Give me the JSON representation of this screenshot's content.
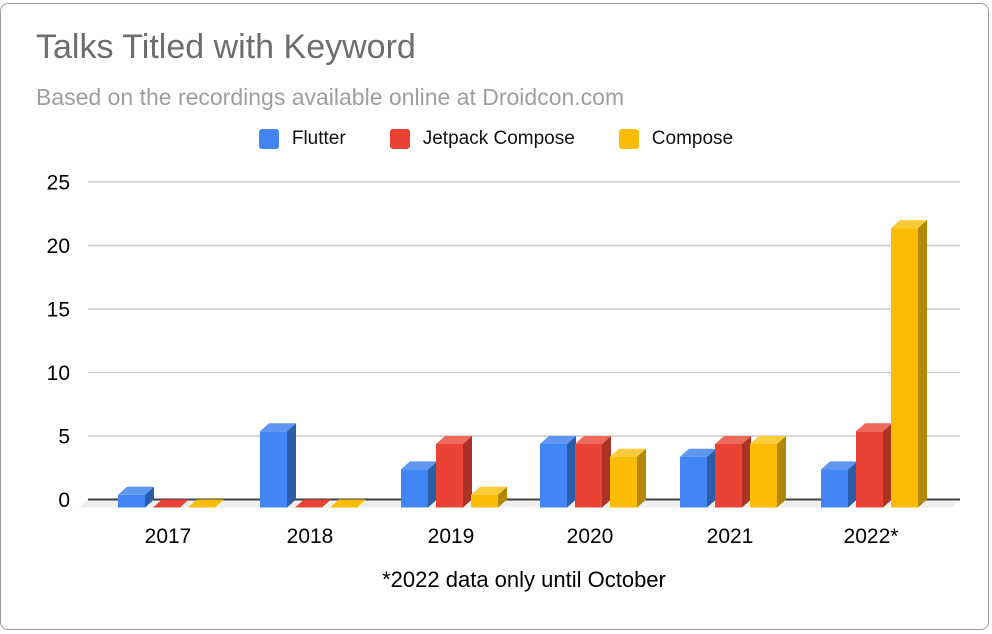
{
  "header": {
    "title": "Talks Titled with Keyword",
    "subtitle": "Based on the recordings available online at Droidcon.com"
  },
  "chart_data": {
    "type": "bar",
    "style": "3d-column",
    "title": "Talks Titled with Keyword",
    "subtitle": "Based on the recordings available online at Droidcon.com",
    "categories": [
      "2017",
      "2018",
      "2019",
      "2020",
      "2021",
      "2022*"
    ],
    "series": [
      {
        "name": "Flutter",
        "color": "#4285F4",
        "color_top": "#5E96F2",
        "color_side": "#2C5DA9",
        "values": [
          1,
          6,
          3,
          5,
          4,
          3
        ]
      },
      {
        "name": "Jetpack Compose",
        "color": "#EA4335",
        "color_top": "#EE6A5D",
        "color_side": "#AC3226",
        "values": [
          0,
          0,
          5,
          5,
          5,
          6
        ]
      },
      {
        "name": "Compose",
        "color": "#FBBC04",
        "color_top": "#FCCB3A",
        "color_side": "#B18704",
        "values": [
          0,
          0,
          1,
          4,
          5,
          22
        ]
      }
    ],
    "xlabel": "",
    "ylabel": "",
    "ylim": [
      0,
      25
    ],
    "yticks": [
      0,
      5,
      10,
      15,
      20,
      25
    ],
    "grid": true,
    "legend_position": "top",
    "footnote": "*2022 data only until October"
  },
  "colors": {
    "grid": "#cccccc",
    "axis": "#424242",
    "floor": "#efefef",
    "title": "#6d6d6d",
    "subtitle": "#9e9e9e",
    "text": "#000000",
    "border": "#9e9e9e"
  }
}
